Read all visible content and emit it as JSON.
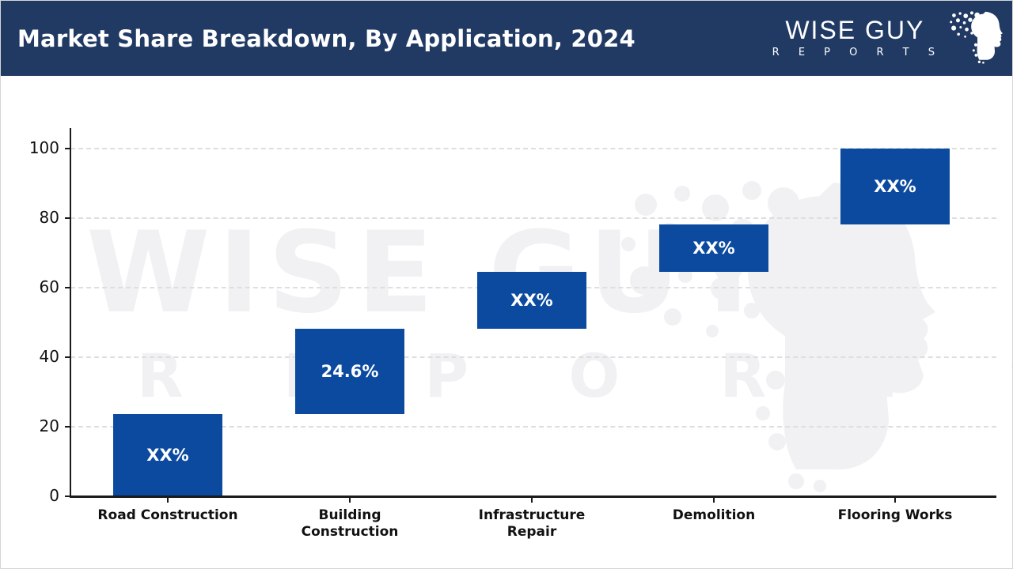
{
  "header": {
    "title": "Market Share Breakdown, By Application, 2024",
    "bg_color": "#213a64",
    "logo": {
      "line1": "WISE GUY",
      "line2": "R E P O R T S"
    }
  },
  "watermark": {
    "line1": "WISE GUY",
    "line2": "R E P O R T S"
  },
  "chart_data": {
    "type": "bar",
    "subtype": "waterfall",
    "title": "Market Share Breakdown, By Application, 2024",
    "xlabel": "",
    "ylabel": "",
    "ylim": [
      0,
      100
    ],
    "yticks": [
      0,
      20,
      40,
      60,
      80,
      100
    ],
    "grid": "horizontal-dashed",
    "legend": "none",
    "bar_color": "#0b4a9f",
    "categories": [
      "Road Construction",
      "Building Construction",
      "Infrastructure Repair",
      "Demolition",
      "Flooring Works"
    ],
    "category_lines": [
      [
        "Road Construction"
      ],
      [
        "Building",
        "Construction"
      ],
      [
        "Infrastructure",
        "Repair"
      ],
      [
        "Demolition"
      ],
      [
        "Flooring Works"
      ]
    ],
    "bars": [
      {
        "label": "XX%",
        "start": 0,
        "end": 23.6,
        "value": 23.6
      },
      {
        "label": "24.6%",
        "start": 23.6,
        "end": 48.2,
        "value": 24.6
      },
      {
        "label": "XX%",
        "start": 48.2,
        "end": 64.6,
        "value": 16.4
      },
      {
        "label": "XX%",
        "start": 64.6,
        "end": 78.2,
        "value": 13.6
      },
      {
        "label": "XX%",
        "start": 78.2,
        "end": 100.0,
        "value": 21.8
      }
    ]
  }
}
